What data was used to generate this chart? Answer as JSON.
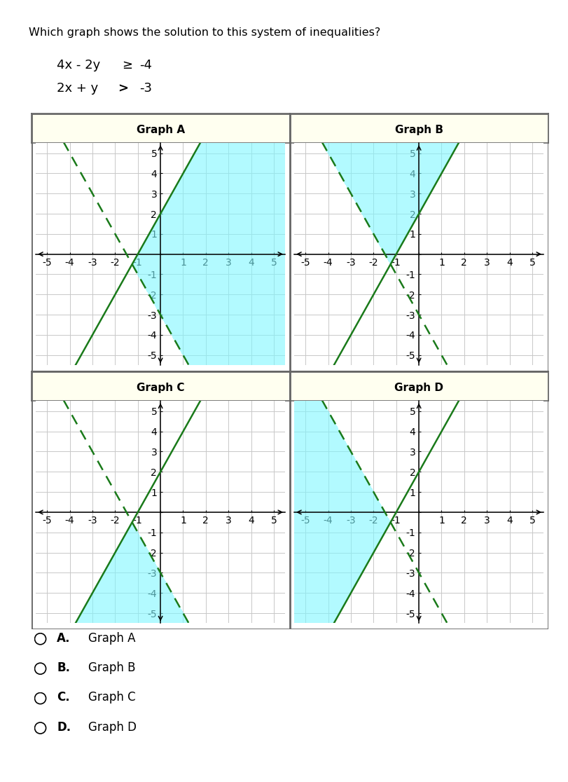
{
  "title_question": "Which graph shows the solution to this system of inequalities?",
  "ineq1_parts": [
    "4x - 2y",
    "≥",
    "-4"
  ],
  "ineq2_parts": [
    "2x + y",
    ">",
    "-3"
  ],
  "graph_titles": [
    "Graph A",
    "Graph B",
    "Graph C",
    "Graph D"
  ],
  "answer_labels": [
    "A.",
    "B.",
    "C.",
    "D."
  ],
  "answer_texts": [
    "Graph A",
    "Graph B",
    "Graph C",
    "Graph D"
  ],
  "bg_color": "#ffffff",
  "panel_header_color": "#fffff0",
  "grid_color": "#c8c8c8",
  "shade_color": "#7ff7ff",
  "shade_alpha": 0.6,
  "solid_line_color": "#1a7a1a",
  "dashed_line_color": "#1a7a1a",
  "border_color": "#666666",
  "axis_color": "#000000",
  "line_width": 1.8,
  "tick_fontsize": 6.5
}
